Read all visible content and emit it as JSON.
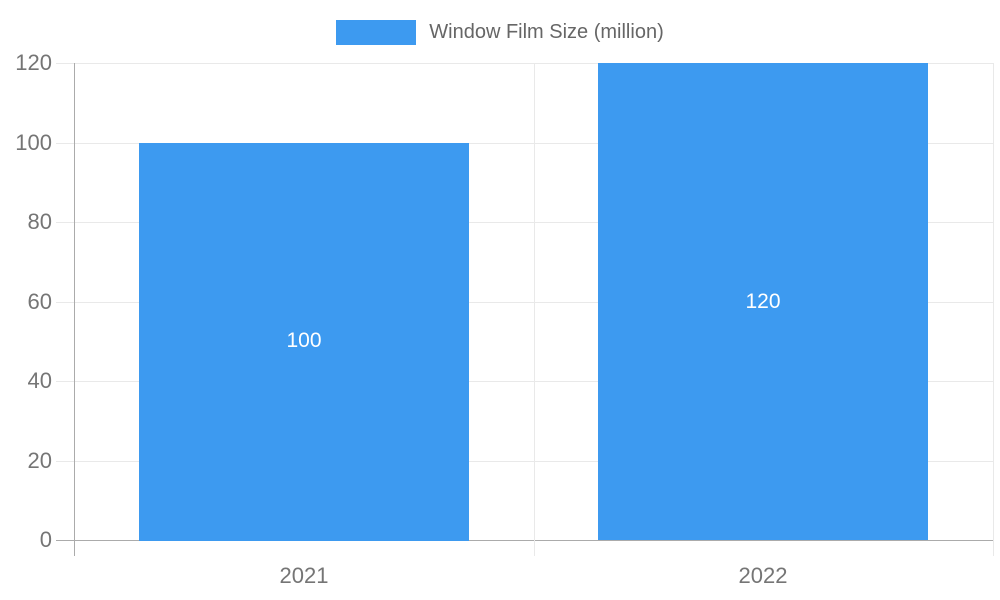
{
  "legend": {
    "label": "Window Film Size (million)",
    "swatch_color": "#3D9AF0"
  },
  "chart_data": {
    "type": "bar",
    "title": "",
    "xlabel": "",
    "ylabel": "",
    "categories": [
      "2021",
      "2022"
    ],
    "series": [
      {
        "name": "Window Film Size (million)",
        "values": [
          100,
          120
        ]
      }
    ],
    "bar_value_labels": [
      "100",
      "120"
    ],
    "yticks": [
      0,
      20,
      40,
      60,
      80,
      100,
      120
    ],
    "ylim": [
      0,
      120
    ],
    "grid": true,
    "legend_position": "top-center",
    "value_label_position": "inside-middle"
  },
  "colors": {
    "bar": "#3D9AF0",
    "gridline": "#e9e9e9",
    "axis_line": "#ababab",
    "axis_text": "#757575",
    "legend_text": "#666666",
    "value_label": "#ffffff",
    "background": "#ffffff"
  }
}
